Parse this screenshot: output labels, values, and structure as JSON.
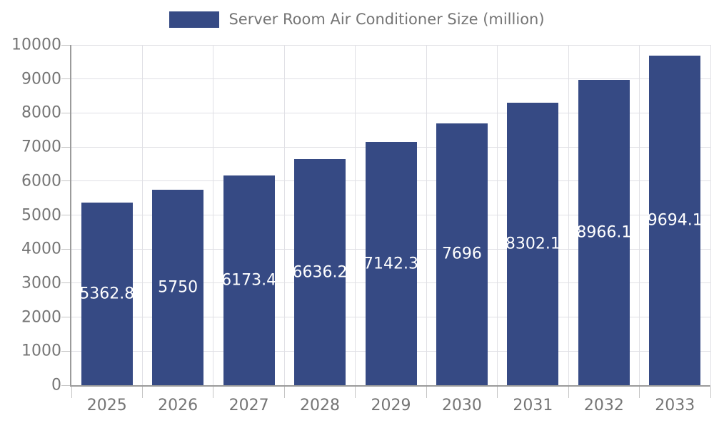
{
  "chart_data": {
    "type": "bar",
    "title": "Server Room Air Conditioner Size (million)",
    "legend": {
      "label": "Server Room Air Conditioner Size (million)",
      "position": "top"
    },
    "categories": [
      "2025",
      "2026",
      "2027",
      "2028",
      "2029",
      "2030",
      "2031",
      "2032",
      "2033"
    ],
    "series": [
      {
        "name": "Server Room Air Conditioner Size (million)",
        "values": [
          5362.8,
          5750,
          6173.4,
          6636.2,
          7142.3,
          7696,
          8302.1,
          8966.1,
          9694.1
        ]
      }
    ],
    "value_labels": [
      "5362.8",
      "5750",
      "6173.4",
      "6636.2",
      "7142.3",
      "7696",
      "8302.1",
      "8966.1",
      "9694.1"
    ],
    "xlabel": "",
    "ylabel": "",
    "ylim": [
      0,
      10000
    ],
    "ytick_interval": 1000,
    "yticks": [
      0,
      1000,
      2000,
      3000,
      4000,
      5000,
      6000,
      7000,
      8000,
      9000,
      10000
    ],
    "grid": true,
    "colors": {
      "bar": "#364A84",
      "value_label": "#ffffff",
      "axis_text": "#757575",
      "grid_line": "#e0e0e5",
      "axis_line": "#9b9b9b",
      "tick": "#c4c4c4",
      "background": "#ffffff"
    }
  }
}
